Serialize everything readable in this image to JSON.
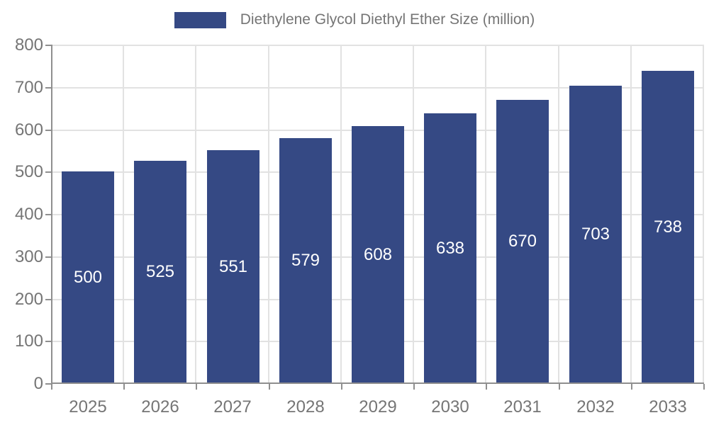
{
  "chart_data": {
    "type": "bar",
    "legend": "Diethylene Glycol Diethyl Ether Size (million)",
    "categories": [
      "2025",
      "2026",
      "2027",
      "2028",
      "2029",
      "2030",
      "2031",
      "2032",
      "2033"
    ],
    "values": [
      500,
      525,
      551,
      579,
      608,
      638,
      670,
      703,
      738
    ],
    "title": "",
    "xlabel": "",
    "ylabel": "",
    "ylim": [
      0,
      800
    ],
    "ytick_step": 100,
    "ytick_labels": [
      "0",
      "100",
      "200",
      "300",
      "400",
      "500",
      "600",
      "700",
      "800"
    ],
    "grid": true,
    "legend_position": "top-center",
    "value_labels_shown_inside_bars": true,
    "colors": {
      "bar": "#354984",
      "value_label": "#ffffff",
      "axis_label": "#757575",
      "grid": "#e2e2e2",
      "axis_line": "#8f8f8f",
      "background": "#ffffff"
    }
  }
}
